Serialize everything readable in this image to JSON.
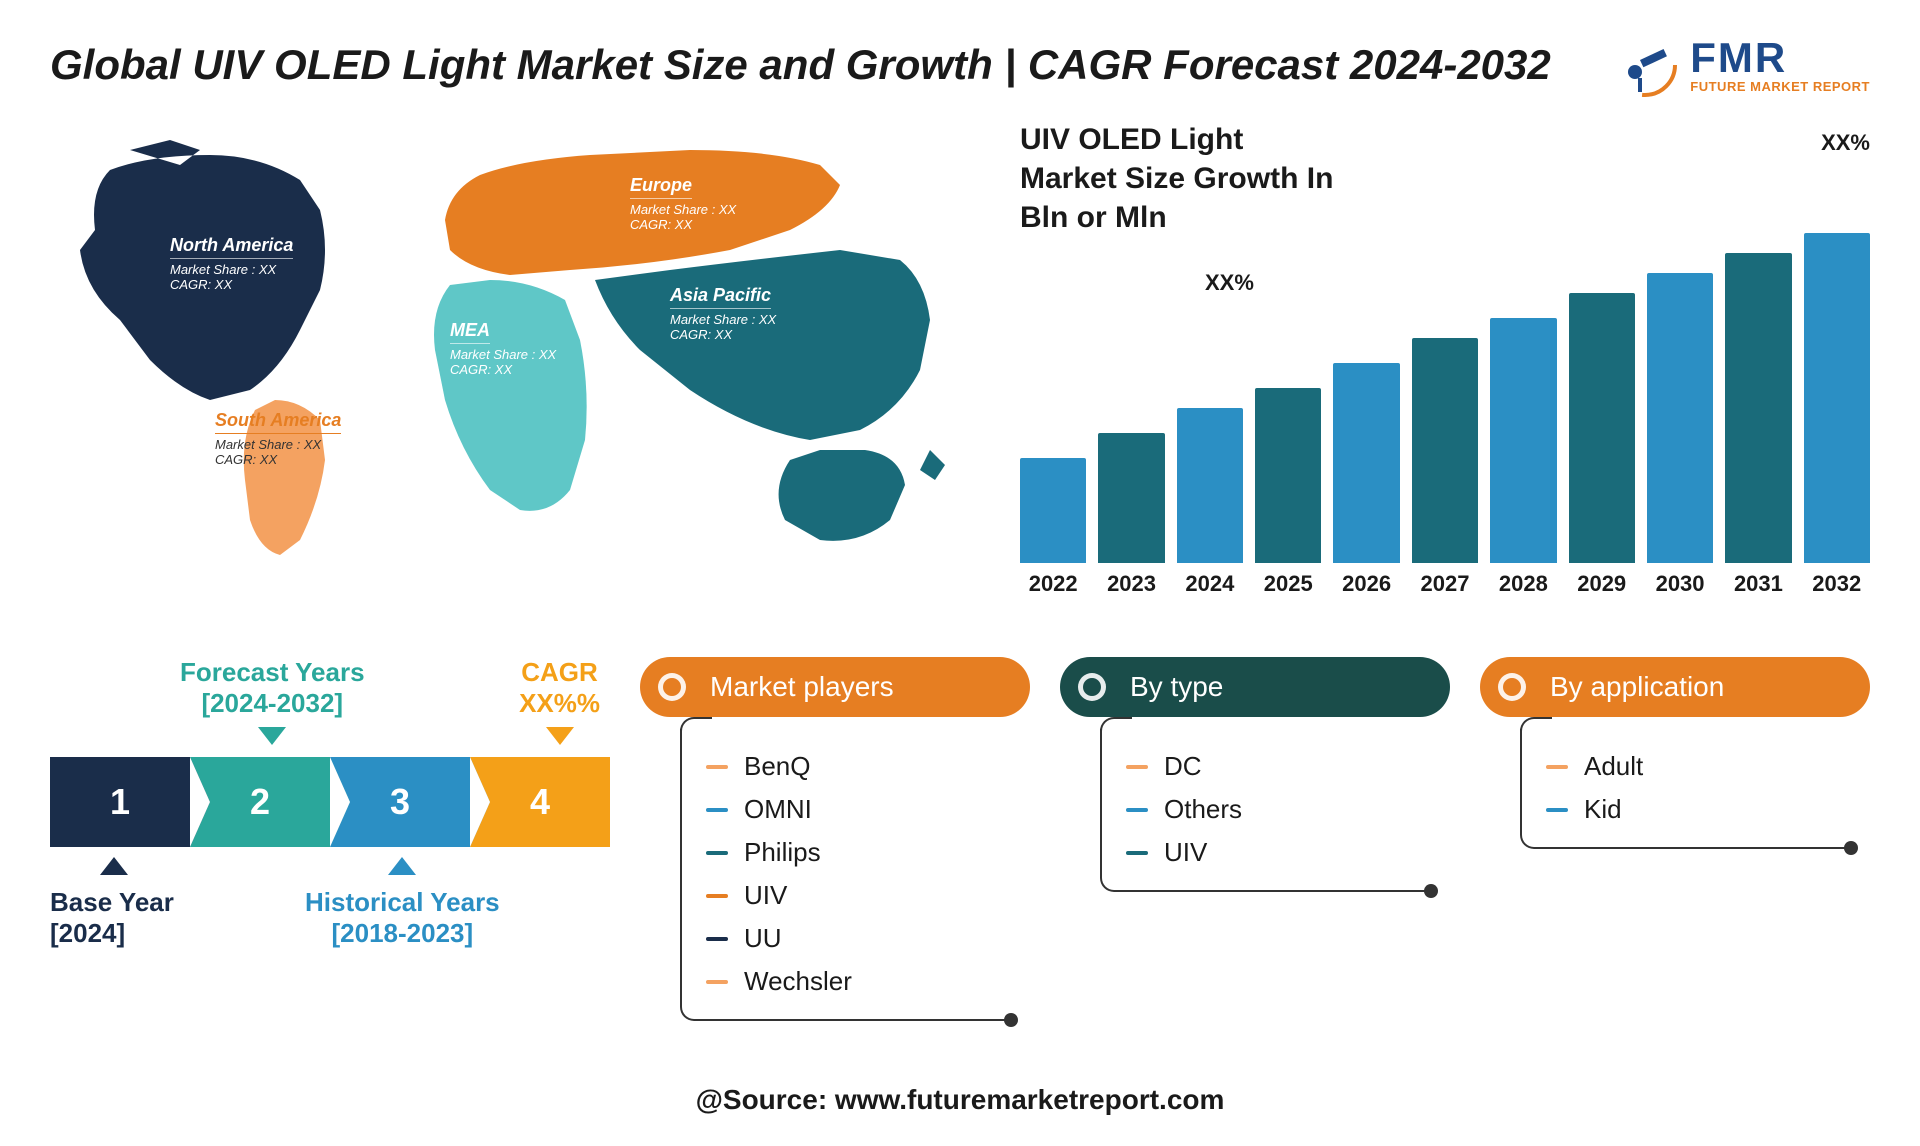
{
  "title": "Global UIV OLED Light Market Size and Growth | CAGR Forecast 2024-2032",
  "logo": {
    "fmr": "FMR",
    "sub": "FUTURE MARKET REPORT",
    "icon_color": "#e67e22",
    "text_color": "#1e4a8a"
  },
  "map": {
    "regions": [
      {
        "name": "North America",
        "share": "Market Share : XX",
        "cagr": "CAGR: XX",
        "color": "#1a2d4a"
      },
      {
        "name": "South America",
        "share": "Market Share : XX",
        "cagr": "CAGR: XX",
        "color": "#f4a261"
      },
      {
        "name": "Europe",
        "share": "Market Share : XX",
        "cagr": "CAGR: XX",
        "color": "#e67e22"
      },
      {
        "name": "MEA",
        "share": "Market Share : XX",
        "cagr": "CAGR: XX",
        "color": "#5fc7c7"
      },
      {
        "name": "Asia Pacific",
        "share": "Market Share : XX",
        "cagr": "CAGR: XX",
        "color": "#1a6b7a"
      }
    ]
  },
  "chart": {
    "title": "UIV OLED Light\nMarket Size Growth In\nBln or Mln",
    "type": "bar",
    "years": [
      "2022",
      "2023",
      "2024",
      "2025",
      "2026",
      "2027",
      "2028",
      "2029",
      "2030",
      "2031",
      "2032"
    ],
    "values": [
      105,
      130,
      155,
      175,
      200,
      225,
      245,
      270,
      290,
      310,
      330
    ],
    "colors": [
      "#2b8fc4",
      "#1a6b7a",
      "#2b8fc4",
      "#1a6b7a",
      "#2b8fc4",
      "#1a6b7a",
      "#2b8fc4",
      "#1a6b7a",
      "#2b8fc4",
      "#1a6b7a",
      "#2b8fc4"
    ],
    "max": 350,
    "pct_start": "XX%",
    "pct_end": "XX%"
  },
  "timeline": {
    "segments": [
      {
        "num": "1",
        "bg": "#1a2d4a"
      },
      {
        "num": "2",
        "bg": "#2aa79b"
      },
      {
        "num": "3",
        "bg": "#2b8fc4"
      },
      {
        "num": "4",
        "bg": "#f4a018"
      }
    ],
    "anno": {
      "base": {
        "label": "Base Year",
        "range": "[2024]",
        "color": "#1a2d4a"
      },
      "forecast": {
        "label": "Forecast Years",
        "range": "[2024-2032]",
        "color": "#2aa79b"
      },
      "historical": {
        "label": "Historical Years",
        "range": "[2018-2023]",
        "color": "#2b8fc4"
      },
      "cagr": {
        "label": "CAGR",
        "range": "XX%%",
        "color": "#f4a018"
      }
    }
  },
  "categories": [
    {
      "title": "Market players",
      "header_bg": "#e67e22",
      "items": [
        {
          "label": "BenQ",
          "tick": "#f4a261"
        },
        {
          "label": "OMNI",
          "tick": "#2b8fc4"
        },
        {
          "label": "Philips",
          "tick": "#1a6b7a"
        },
        {
          "label": "UIV",
          "tick": "#e67e22"
        },
        {
          "label": "UU",
          "tick": "#1a2d4a"
        },
        {
          "label": "Wechsler",
          "tick": "#f4a261"
        }
      ]
    },
    {
      "title": "By type",
      "header_bg": "#1a4d4a",
      "items": [
        {
          "label": "DC",
          "tick": "#f4a261"
        },
        {
          "label": "Others",
          "tick": "#2b8fc4"
        },
        {
          "label": "UIV",
          "tick": "#1a6b7a"
        }
      ]
    },
    {
      "title": "By application",
      "header_bg": "#e67e22",
      "items": [
        {
          "label": "Adult",
          "tick": "#f4a261"
        },
        {
          "label": "Kid",
          "tick": "#2b8fc4"
        }
      ]
    }
  ],
  "source": "@Source: www.futuremarketreport.com"
}
